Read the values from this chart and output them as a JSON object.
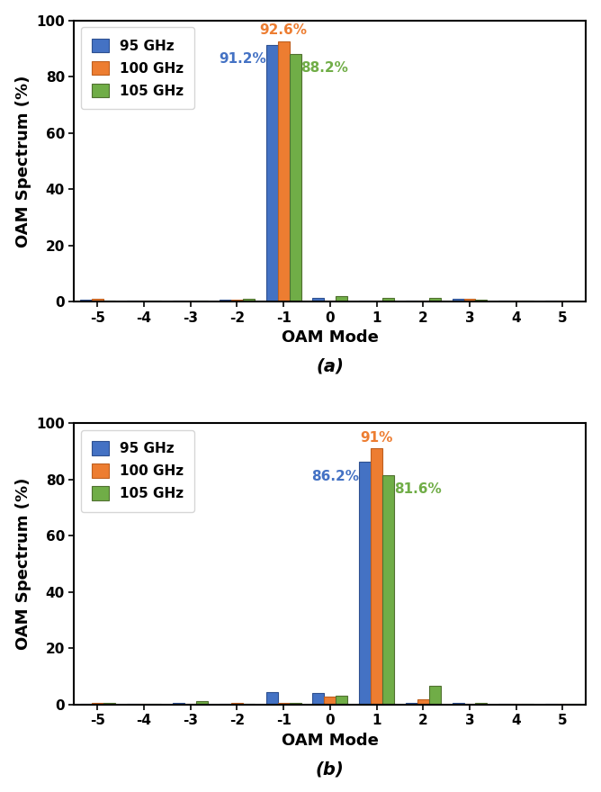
{
  "modes": [
    -5,
    -4,
    -3,
    -2,
    -1,
    0,
    1,
    2,
    3,
    4,
    5
  ],
  "plot_a": {
    "dominant_mode": -1,
    "data_95": [
      0.8,
      0.2,
      0.3,
      0.7,
      91.2,
      1.2,
      0.5,
      0.4,
      1.0,
      0.3,
      0.2
    ],
    "data_100": [
      1.1,
      0.2,
      0.3,
      0.7,
      92.6,
      0.4,
      0.4,
      0.3,
      1.1,
      0.2,
      0.2
    ],
    "data_105": [
      0.2,
      0.2,
      0.3,
      1.1,
      88.2,
      2.0,
      1.2,
      1.2,
      0.8,
      0.2,
      0.2
    ],
    "annot_95": "91.2%",
    "annot_100": "92.6%",
    "annot_105": "88.2%",
    "annot_95_color": "#4472C4",
    "annot_100_color": "#ED7D31",
    "annot_105_color": "#70AD47",
    "label": "(a)"
  },
  "plot_b": {
    "dominant_mode": 1,
    "data_95": [
      0.3,
      0.2,
      0.5,
      0.2,
      4.5,
      4.2,
      86.2,
      0.4,
      0.4,
      0.2,
      0.2
    ],
    "data_100": [
      0.4,
      0.2,
      0.3,
      0.4,
      0.5,
      2.8,
      91.0,
      1.8,
      0.3,
      0.2,
      0.2
    ],
    "data_105": [
      0.4,
      0.2,
      1.2,
      0.2,
      0.6,
      3.2,
      81.6,
      6.5,
      0.4,
      0.2,
      0.2
    ],
    "annot_95": "86.2%",
    "annot_100": "91%",
    "annot_105": "81.6%",
    "annot_95_color": "#4472C4",
    "annot_100_color": "#ED7D31",
    "annot_105_color": "#70AD47",
    "label": "(b)"
  },
  "colors": {
    "c95": "#4472C4",
    "c100": "#ED7D31",
    "c105": "#70AD47"
  },
  "edge_colors": {
    "c95": "#2E5090",
    "c100": "#BF6020",
    "c105": "#507030"
  },
  "legend_labels": [
    "95 GHz",
    "100 GHz",
    "105 GHz"
  ],
  "ylabel": "OAM Spectrum (%)",
  "xlabel": "OAM Mode",
  "ylim": [
    0,
    100
  ],
  "yticks": [
    0,
    20,
    40,
    60,
    80,
    100
  ],
  "bar_width": 0.25,
  "figure_size": [
    6.68,
    8.8
  ],
  "dpi": 100,
  "tick_fontsize": 11,
  "label_fontsize": 13,
  "legend_fontsize": 11,
  "annot_fontsize": 11
}
